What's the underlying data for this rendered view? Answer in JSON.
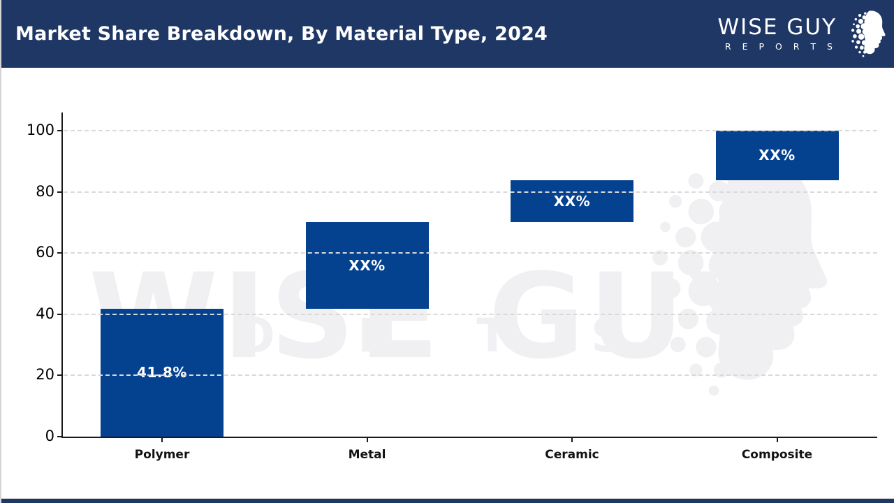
{
  "header": {
    "title": "Market Share Breakdown, By Material Type, 2024",
    "logo": {
      "line1": "WISE GUY",
      "line2": "R E P O R T S"
    }
  },
  "watermark": {
    "line1": "WISE GUY",
    "line2": "P O R T S"
  },
  "colors": {
    "header_bg": "#1f3765",
    "bar_fill": "#04418f",
    "bar_label_text": "#ffffff",
    "axis": "#1a1a1a",
    "gridline": "#d9d9d9",
    "watermark": "#f0f0f3",
    "footer_bar": "#1f3765"
  },
  "chart_data": {
    "type": "bar",
    "subtype": "waterfall",
    "title": "Market Share Breakdown, By Material Type, 2024",
    "xlabel": "",
    "ylabel": "",
    "categories": [
      "Polymer",
      "Metal",
      "Ceramic",
      "Composite"
    ],
    "segments": [
      {
        "category": "Polymer",
        "start": 0,
        "end": 41.8,
        "label": "41.8%"
      },
      {
        "category": "Metal",
        "start": 41.8,
        "end": 70,
        "label": "XX%"
      },
      {
        "category": "Ceramic",
        "start": 70,
        "end": 83.8,
        "label": "XX%"
      },
      {
        "category": "Composite",
        "start": 83.8,
        "end": 100,
        "label": "XX%"
      }
    ],
    "y_ticks": [
      0,
      20,
      40,
      60,
      80,
      100
    ],
    "ylim": [
      0,
      106
    ],
    "grid": "horizontal dashed, drawn above bars",
    "legend": "none"
  }
}
